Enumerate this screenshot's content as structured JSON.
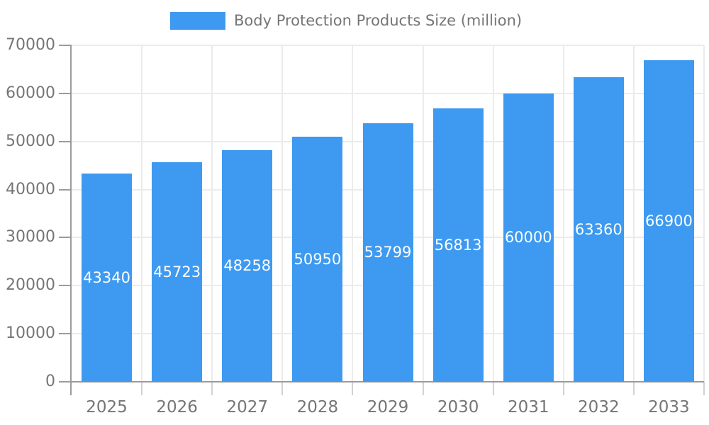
{
  "legend": {
    "label": "Body Protection Products Size (million)",
    "swatch_color": "#3d9af0"
  },
  "chart_data": {
    "type": "bar",
    "title": "Body Protection Products Size (million)",
    "categories": [
      "2025",
      "2026",
      "2027",
      "2028",
      "2029",
      "2030",
      "2031",
      "2032",
      "2033"
    ],
    "series": [
      {
        "name": "Body Protection Products Size (million)",
        "values": [
          43340,
          45723,
          48258,
          50950,
          53799,
          56813,
          60000,
          63360,
          66900
        ],
        "color": "#3d9af0"
      }
    ],
    "xlabel": "",
    "ylabel": "",
    "ylim": [
      0,
      70000
    ],
    "yticks": [
      0,
      10000,
      20000,
      30000,
      40000,
      50000,
      60000,
      70000
    ],
    "grid": true,
    "legend_position": "top",
    "value_labels": {
      "position": "center",
      "color": "#ffffff"
    },
    "colors": {
      "axis_label": "#757575",
      "axis_line": "#9b9b9b",
      "gridline": "#ebebeb",
      "x_tick": "#d2d2d2"
    }
  }
}
